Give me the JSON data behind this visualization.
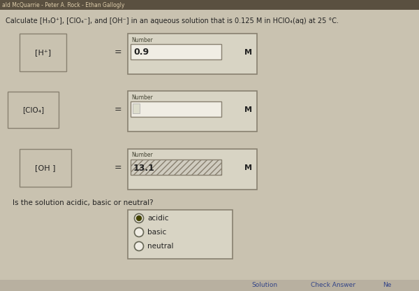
{
  "title_line1": "ald McQuarrie - Peter A. Rock - Ethan Gallogly",
  "question": "Calculate [H₃O⁺], [ClO₄⁻], and [OH⁻] in an aqueous solution that is 0.125 M in HClO₄(aq) at 25 °C.",
  "bg_color": "#c9c2b0",
  "box_outer_bg": "#c2baa8",
  "box_inner_bg": "#d8d4c4",
  "input_white": "#f0ede4",
  "input_hatched": "#c8c4b0",
  "label1_bracket": "[H⁺]",
  "label2_bracket": "[ClO₄]",
  "label3_bracket": "[OH ]",
  "label1_value": "0.9",
  "label2_value": "",
  "label3_value": "13.1",
  "unit": "M",
  "number_label": "Number",
  "question_text": "Is the solution acidic, basic or neutral?",
  "radio_options": [
    "acidic",
    "basic",
    "neutral"
  ],
  "selected_option": 0,
  "bottom_text_solution": "Solution",
  "bottom_text_check": "Check Answer",
  "bottom_text_next": "Ne",
  "header_bg": "#5a5040",
  "header_text_color": "#ddccaa",
  "bottom_bar_color": "#b8b0a0",
  "border_color": "#888070",
  "text_dark": "#222222",
  "eq_sign": "=",
  "minus_sign": "⁻"
}
